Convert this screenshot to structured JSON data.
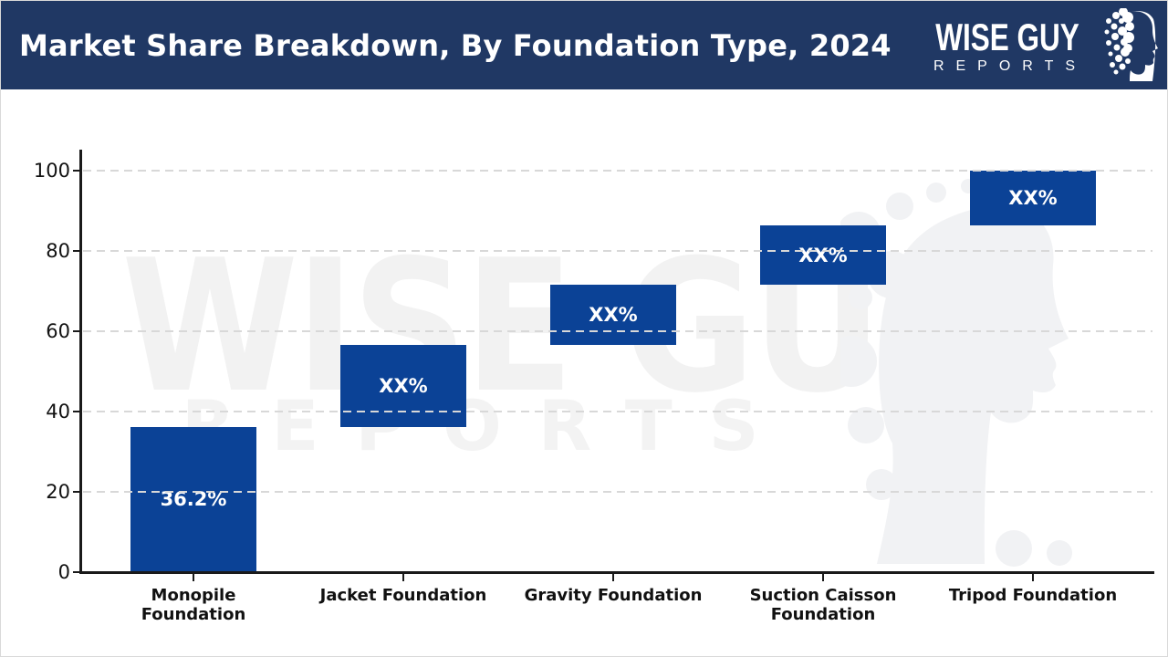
{
  "header": {
    "title": "Market Share Breakdown, By Foundation Type, 2024",
    "logo": {
      "primary": "WISE GUY",
      "secondary": "REPORTS"
    }
  },
  "watermark": {
    "primary": "WISE GUY",
    "secondary": "REPORTS"
  },
  "chart_data": {
    "type": "bar",
    "subtype": "waterfall-stacked-percentage",
    "title": "Market Share Breakdown, By Foundation Type, 2024",
    "categories": [
      "Monopile Foundation",
      "Jacket Foundation",
      "Gravity Foundation",
      "Suction Caisson Foundation",
      "Tripod Foundation"
    ],
    "segments": [
      {
        "category": "Monopile Foundation",
        "category_lines": [
          "Monopile",
          "Foundation"
        ],
        "start": 0,
        "end": 36.2,
        "label": "36.2%"
      },
      {
        "category": "Jacket Foundation",
        "category_lines": [
          "Jacket Foundation"
        ],
        "start": 36.2,
        "end": 56.5,
        "label": "XX%"
      },
      {
        "category": "Gravity Foundation",
        "category_lines": [
          "Gravity Foundation"
        ],
        "start": 56.5,
        "end": 71.5,
        "label": "XX%"
      },
      {
        "category": "Suction Caisson Foundation",
        "category_lines": [
          "Suction Caisson",
          "Foundation"
        ],
        "start": 71.5,
        "end": 86.3,
        "label": "XX%"
      },
      {
        "category": "Tripod Foundation",
        "category_lines": [
          "Tripod Foundation"
        ],
        "start": 86.3,
        "end": 100,
        "label": "XX%"
      }
    ],
    "y_ticks": [
      0,
      20,
      40,
      60,
      80,
      100
    ],
    "ylim": [
      0,
      105
    ],
    "xlabel": "",
    "ylabel": "",
    "grid": "horizontal-dashed",
    "legend": "none"
  },
  "colors": {
    "header_bg": "#203864",
    "bar": "#0b4296",
    "bar_label": "#ffffff",
    "axis": "#1a1a1a",
    "gridline": "#d8d8d8",
    "watermark": "#f1f2f4"
  }
}
